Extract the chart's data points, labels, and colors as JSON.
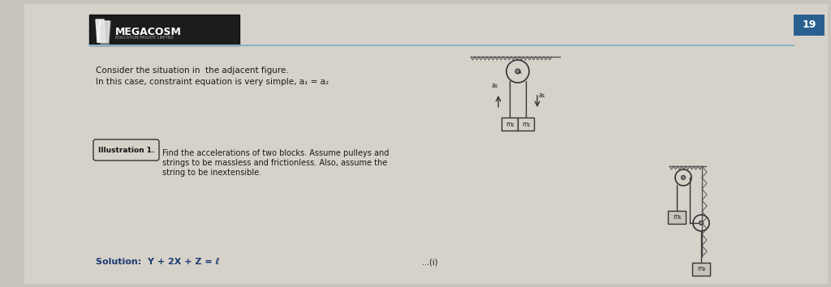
{
  "bg_color": "#c8c4bc",
  "page_bg": "#d4d0c8",
  "logo_text": "MEGACOSM",
  "logo_subtext": "EDUCATION PRIVATE LIMITED",
  "page_number": "19",
  "header_line_color": "#8ab4c8",
  "main_text_line1": "Consider the situation in  the adjacent figure.",
  "main_text_line2": "In this case, constraint equation is very simple, a₁ = a₂",
  "illustration_label": "Illustration 1.",
  "illustration_text1": "Find the accelerations of two blocks. Assume pulleys and",
  "illustration_text2": "strings to be massless and frictionless. Also, assume the",
  "illustration_text3": "string to be inextensible.",
  "solution_text": "Solution:  Y + 2X + Z = ℓ",
  "solution_right": "...(i)",
  "font_color": "#1a1a1a",
  "accent_color": "#2a6090"
}
